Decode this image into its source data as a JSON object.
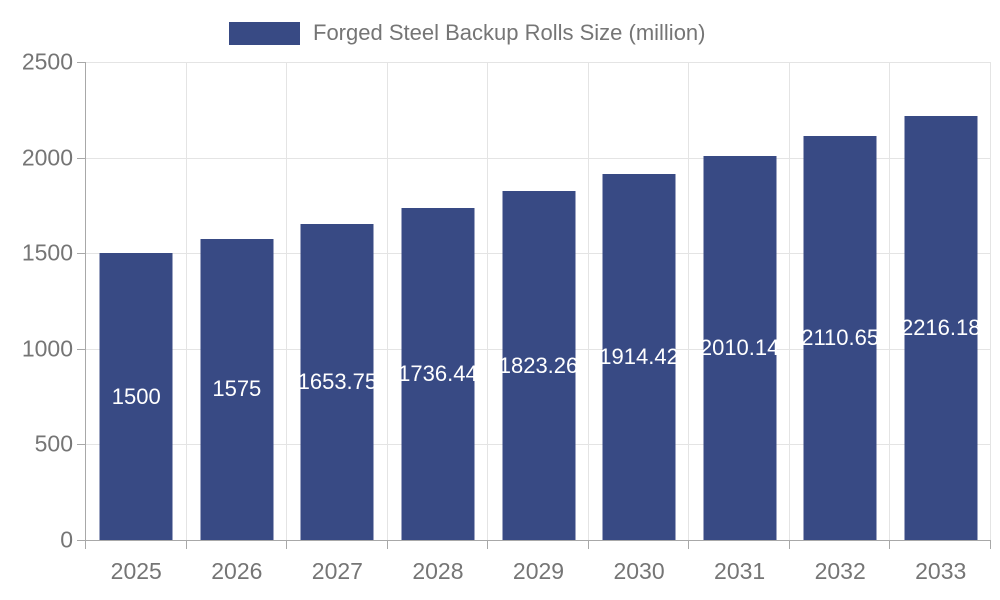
{
  "legend": {
    "label": "Forged Steel Backup Rolls Size (million)"
  },
  "chart_data": {
    "type": "bar",
    "title": "Forged Steel Backup Rolls Size (million)",
    "series_name": "Forged Steel Backup Rolls Size (million)",
    "categories": [
      "2025",
      "2026",
      "2027",
      "2028",
      "2029",
      "2030",
      "2031",
      "2032",
      "2033"
    ],
    "values": [
      1500,
      1575,
      1653.75,
      1736.44,
      1823.26,
      1914.42,
      2010.14,
      2110.65,
      2216.18
    ],
    "labels": [
      "1500",
      "1575",
      "1653.75",
      "1736.44",
      "1823.26",
      "1914.42",
      "2010.14",
      "2110.65",
      "2216.18"
    ],
    "xlabel": "",
    "ylabel": "",
    "ylim": [
      0,
      2500
    ],
    "yticks": [
      0,
      500,
      1000,
      1500,
      2000,
      2500
    ],
    "grid": true,
    "value_label_position": "inside-center",
    "legend_position": "top-center"
  },
  "colors": {
    "bar": "#384a84",
    "bar_label": "#ffffff",
    "axis_text": "#757575",
    "axis_line": "#a8a8a8",
    "grid_line": "#e4e4e4",
    "legend_text": "#757575",
    "background": "#ffffff"
  }
}
